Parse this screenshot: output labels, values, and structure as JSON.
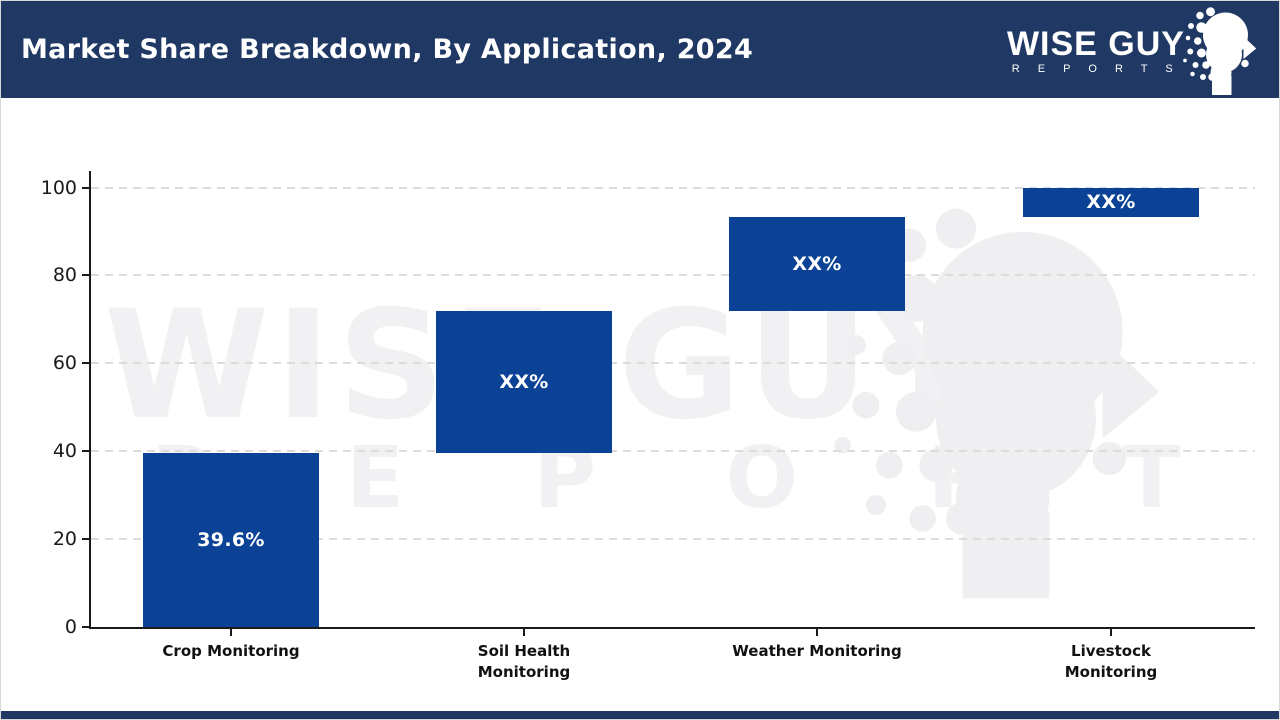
{
  "header": {
    "title": "Market Share Breakdown, By Application, 2024",
    "background_color": "#1f3864",
    "logo": {
      "wordmark": "WISE GUY",
      "subtitle": "R E P O R T S"
    }
  },
  "watermark": {
    "line1": "WISE GUY",
    "line2": "R E P O R T S"
  },
  "chart_data": {
    "type": "bar",
    "subtype": "waterfall-floating-segments",
    "title": "Market Share Breakdown, By Application, 2024",
    "categories": [
      "Crop Monitoring",
      "Soil Health\nMonitoring",
      "Weather Monitoring",
      "Livestock\nMonitoring"
    ],
    "segments": [
      {
        "category": "Crop Monitoring",
        "start": 0,
        "end": 39.6,
        "label": "39.6%"
      },
      {
        "category": "Soil Health Monitoring",
        "start": 39.6,
        "end": 72.0,
        "label": "XX%"
      },
      {
        "category": "Weather Monitoring",
        "start": 72.0,
        "end": 93.4,
        "label": "XX%"
      },
      {
        "category": "Livestock Monitoring",
        "start": 93.4,
        "end": 100.0,
        "label": "XX%"
      }
    ],
    "y_ticks": [
      0,
      20,
      40,
      60,
      80,
      100
    ],
    "ylim": [
      0,
      105
    ],
    "xlabel": "",
    "ylabel": "",
    "bar_color": "#0b4296",
    "grid": "horizontal-dashed",
    "legend": "none"
  }
}
